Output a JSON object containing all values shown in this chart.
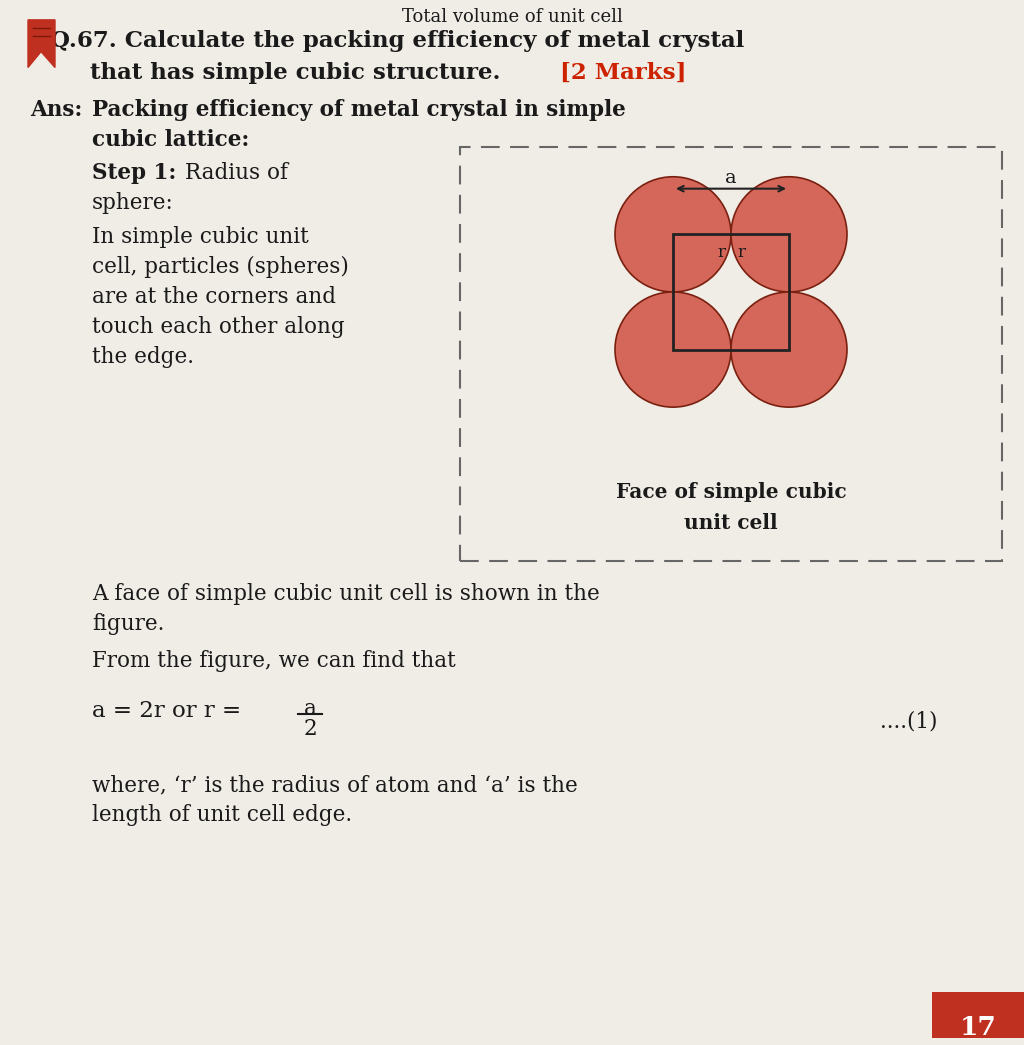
{
  "page_bg": "#f0ece6",
  "title_line1": "Q.67. Calculate the packing efficiency of metal crystal",
  "title_line2": "that has simple cubic structure.",
  "marks_text": "[2 Marks]",
  "ans_line1": "Ans: Packing efficiency of metal crystal in simple",
  "ans_line2": "cubic lattice:",
  "step1_bold": "Step 1:",
  "step1_rest": " Radius of",
  "step1_sub": "sphere:",
  "para1_lines": [
    "In simple cubic unit",
    "cell, particles (spheres)",
    "are at the corners and",
    "touch each other along",
    "the edge."
  ],
  "fig_caption1": "Face of simple cubic",
  "fig_caption2": "unit cell",
  "para2a": "A face of simple cubic unit cell is shown in the",
  "para2b": "figure.",
  "para3": "From the figure, we can find that",
  "formula_left": "a = 2r or r = ",
  "frac_num": "a",
  "frac_den": "2",
  "eq_num": "....(1)",
  "para4a": "where, ‘r’ is the radius of atom and ‘a’ is the",
  "para4b": "length of unit cell edge.",
  "page_num": "17",
  "sphere_color": "#d4675a",
  "sphere_edge_color": "#7a2010",
  "box_edge_color": "#222222",
  "dashed_color": "#666666",
  "red_color": "#cc2200",
  "text_color": "#1a1a1a",
  "page_num_bg": "#c03020",
  "page_num_fg": "#ffffff",
  "arrow_color": "#222222"
}
